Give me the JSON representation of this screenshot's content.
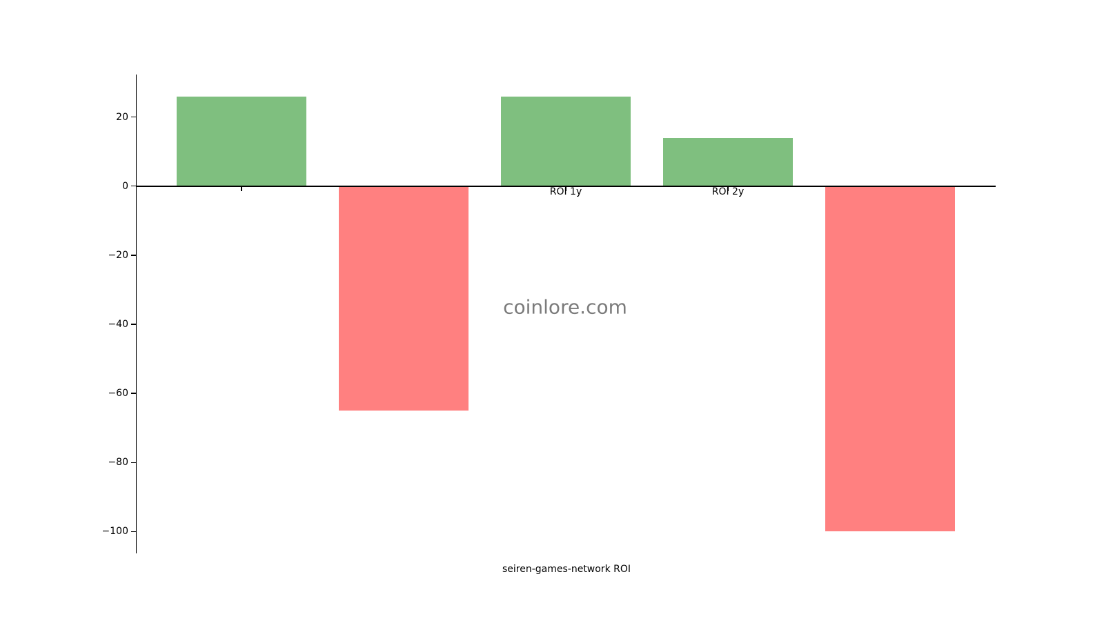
{
  "chart_data": {
    "type": "bar",
    "title": "",
    "xlabel": "seiren-games-network ROI",
    "ylabel": "",
    "categories": [
      "",
      "",
      "ROI 1y",
      "ROI 2y",
      ""
    ],
    "values": [
      26,
      -65,
      26,
      14,
      -100
    ],
    "yticks": [
      20,
      0,
      -20,
      -40,
      -60,
      -80,
      -100
    ],
    "ylim": [
      -106.3,
      32.3
    ],
    "grid": false,
    "legend_position": "none",
    "watermark": "coinlore.com",
    "colors": {
      "positive_bar": "#7fbf7f",
      "negative_bar": "#ff8080",
      "axis_line": "#000000",
      "tick_label": "#000000",
      "watermark_text": "#7b7b7b"
    }
  }
}
